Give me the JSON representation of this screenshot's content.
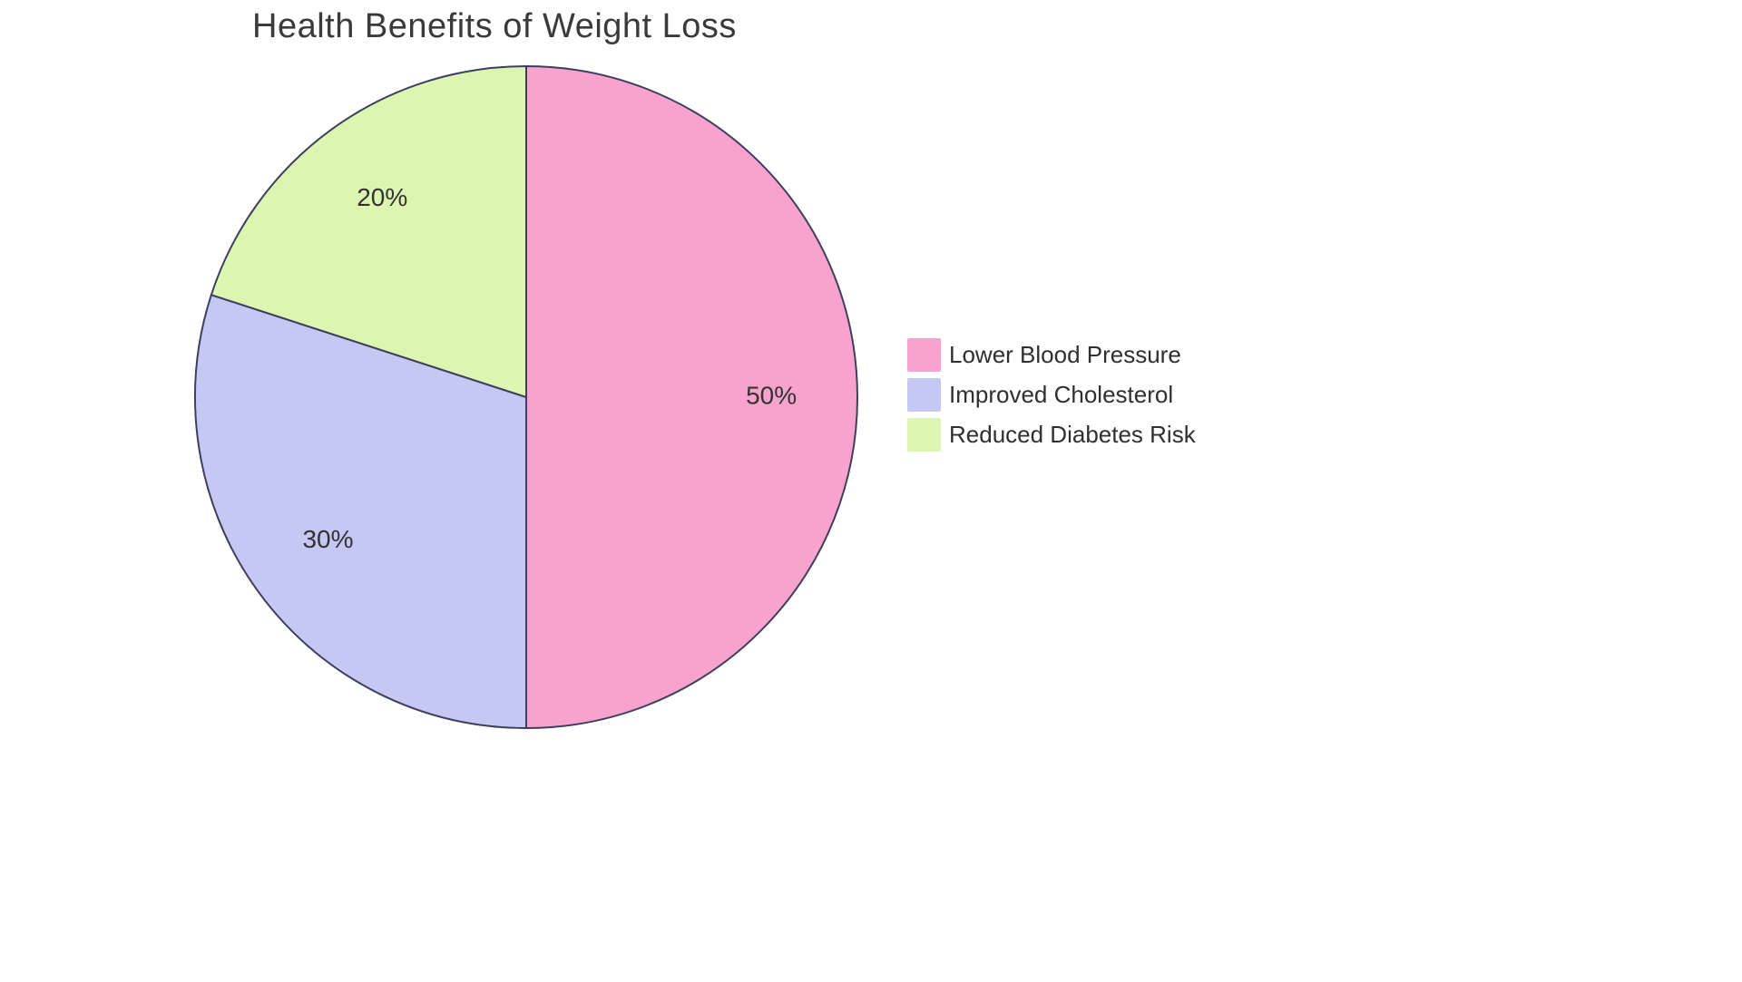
{
  "chart_data": {
    "type": "pie",
    "title": "Health Benefits of Weight Loss",
    "labels": [
      "Lower Blood Pressure",
      "Improved Cholesterol",
      "Reduced Diabetes Risk"
    ],
    "values": [
      50,
      30,
      20
    ],
    "value_labels": [
      "50%",
      "30%",
      "20%"
    ],
    "colors": [
      "#F8A3CE",
      "#C5C8F2",
      "#DCF6B2"
    ],
    "slice_border_color": "#3E3E5E",
    "start_angle_deg": 0,
    "direction": "clockwise",
    "legend_position": "right",
    "background_color": "#FFFFFF"
  }
}
